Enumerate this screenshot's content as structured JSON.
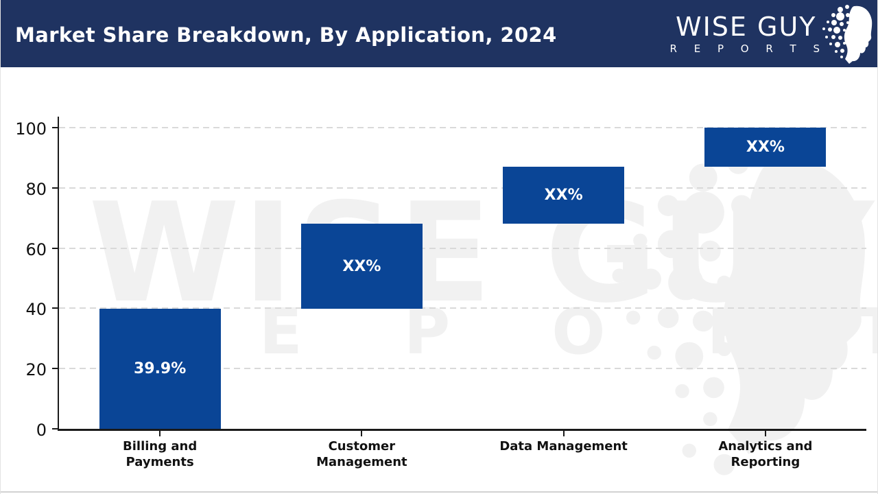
{
  "header": {
    "title": "Market Share Breakdown, By Application, 2024",
    "logo": {
      "wordmark": "WISE GUY",
      "subtitle": "R E P O R T S"
    }
  },
  "watermark": {
    "line1": "WISE GUY",
    "line2": "R E P O R T S"
  },
  "chart_data": {
    "type": "bar",
    "subtype": "floating-stacked-percentage-waterfall",
    "title": "Market Share Breakdown, By Application, 2024",
    "categories": [
      "Billing and Payments",
      "Customer Management",
      "Data Management",
      "Analytics and Reporting"
    ],
    "category_lines": [
      [
        "Billing and",
        "Payments"
      ],
      [
        "Customer",
        "Management"
      ],
      [
        "Data Management"
      ],
      [
        "Analytics and",
        "Reporting"
      ]
    ],
    "segments": [
      {
        "category": "Billing and Payments",
        "start": 0,
        "end": 39.9,
        "value_label": "39.9%"
      },
      {
        "category": "Customer Management",
        "start": 39.9,
        "end": 68,
        "value_label": "XX%"
      },
      {
        "category": "Data Management",
        "start": 68,
        "end": 87,
        "value_label": "XX%"
      },
      {
        "category": "Analytics and Reporting",
        "start": 87,
        "end": 100,
        "value_label": "XX%"
      }
    ],
    "ylim": [
      0,
      100
    ],
    "yticks": [
      0,
      20,
      40,
      60,
      80,
      100
    ],
    "grid": "horizontal-dashed",
    "legend": "none",
    "bar_color": "#0a4596",
    "bar_label_color": "#ffffff",
    "axis_color": "#1a1a1a",
    "header_color": "#1f3361",
    "watermark_color": "#f1f1f1"
  }
}
